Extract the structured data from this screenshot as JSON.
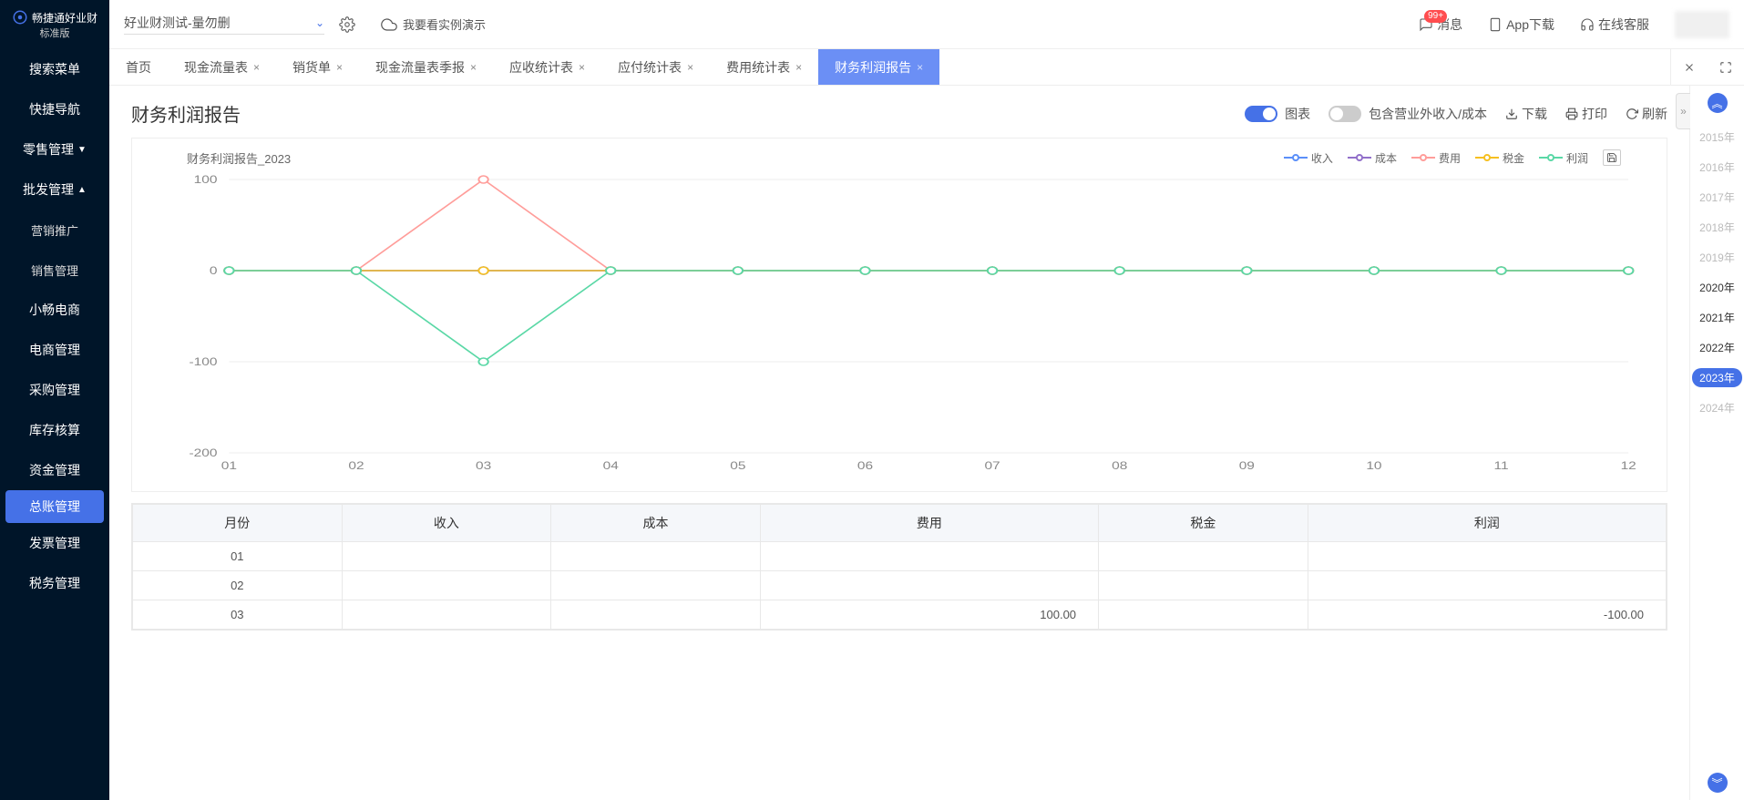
{
  "brand": {
    "name": "畅捷通好业财",
    "edition": "标准版"
  },
  "sidebar": {
    "items": [
      {
        "label": "搜索菜单",
        "kind": "item"
      },
      {
        "label": "快捷导航",
        "kind": "item"
      },
      {
        "label": "零售管理",
        "kind": "group",
        "caret": "▼"
      },
      {
        "label": "批发管理",
        "kind": "group",
        "caret": "▲"
      },
      {
        "label": "营销推广",
        "kind": "sub"
      },
      {
        "label": "销售管理",
        "kind": "sub"
      },
      {
        "label": "小畅电商",
        "kind": "item"
      },
      {
        "label": "电商管理",
        "kind": "item"
      },
      {
        "label": "采购管理",
        "kind": "item"
      },
      {
        "label": "库存核算",
        "kind": "item"
      },
      {
        "label": "资金管理",
        "kind": "item"
      },
      {
        "label": "总账管理",
        "kind": "item",
        "active": true
      },
      {
        "label": "发票管理",
        "kind": "item"
      },
      {
        "label": "税务管理",
        "kind": "item"
      }
    ]
  },
  "topbar": {
    "org": "好业财测试-量勿删",
    "demo": "我要看实例演示",
    "badge": "99+",
    "actions": {
      "msg": "消息",
      "app": "App下载",
      "service": "在线客服"
    }
  },
  "tabs": [
    {
      "label": "首页",
      "closable": false
    },
    {
      "label": "现金流量表",
      "closable": true
    },
    {
      "label": "销货单",
      "closable": true
    },
    {
      "label": "现金流量表季报",
      "closable": true
    },
    {
      "label": "应收统计表",
      "closable": true
    },
    {
      "label": "应付统计表",
      "closable": true
    },
    {
      "label": "费用统计表",
      "closable": true
    },
    {
      "label": "财务利润报告",
      "closable": true,
      "active": true
    }
  ],
  "report": {
    "title": "财务利润报告",
    "chart_label": "图表",
    "extra_label": "包含营业外收入/成本",
    "download": "下载",
    "print": "打印",
    "refresh": "刷新"
  },
  "chart": {
    "title": "财务利润报告_2023",
    "type": "line",
    "categories": [
      "01",
      "02",
      "03",
      "04",
      "05",
      "06",
      "07",
      "08",
      "09",
      "10",
      "11",
      "12"
    ],
    "ylim": [
      -200,
      100
    ],
    "yticks": [
      100,
      0,
      -100,
      -200
    ],
    "series": [
      {
        "name": "收入",
        "color": "#5b8ff9",
        "values": [
          0,
          0,
          0,
          0,
          0,
          0,
          0,
          0,
          0,
          0,
          0,
          0
        ]
      },
      {
        "name": "成本",
        "color": "#9270ca",
        "values": [
          0,
          0,
          0,
          0,
          0,
          0,
          0,
          0,
          0,
          0,
          0,
          0
        ]
      },
      {
        "name": "费用",
        "color": "#ff9d9a",
        "values": [
          0,
          0,
          100,
          0,
          0,
          0,
          0,
          0,
          0,
          0,
          0,
          0
        ]
      },
      {
        "name": "税金",
        "color": "#f6c021",
        "values": [
          0,
          0,
          0,
          0,
          0,
          0,
          0,
          0,
          0,
          0,
          0,
          0
        ]
      },
      {
        "name": "利润",
        "color": "#5ad8a6",
        "values": [
          0,
          0,
          -100,
          0,
          0,
          0,
          0,
          0,
          0,
          0,
          0,
          0
        ]
      }
    ],
    "grid_color": "#eeeeee",
    "axis_color": "#cccccc",
    "label_color": "#888888",
    "label_fontsize": 12,
    "marker_radius": 4,
    "line_width": 1.5
  },
  "table": {
    "columns": [
      "月份",
      "收入",
      "成本",
      "费用",
      "税金",
      "利润"
    ],
    "rows": [
      {
        "month": "01",
        "income": "",
        "cost": "",
        "expense": "",
        "tax": "",
        "profit": ""
      },
      {
        "month": "02",
        "income": "",
        "cost": "",
        "expense": "",
        "tax": "",
        "profit": ""
      },
      {
        "month": "03",
        "income": "",
        "cost": "",
        "expense": "100.00",
        "tax": "",
        "profit": "-100.00"
      }
    ]
  },
  "years": {
    "list": [
      {
        "label": "2015年",
        "enabled": false
      },
      {
        "label": "2016年",
        "enabled": false
      },
      {
        "label": "2017年",
        "enabled": false
      },
      {
        "label": "2018年",
        "enabled": false
      },
      {
        "label": "2019年",
        "enabled": false
      },
      {
        "label": "2020年",
        "enabled": true
      },
      {
        "label": "2021年",
        "enabled": true
      },
      {
        "label": "2022年",
        "enabled": true
      },
      {
        "label": "2023年",
        "enabled": true,
        "active": true
      },
      {
        "label": "2024年",
        "enabled": false
      }
    ]
  }
}
